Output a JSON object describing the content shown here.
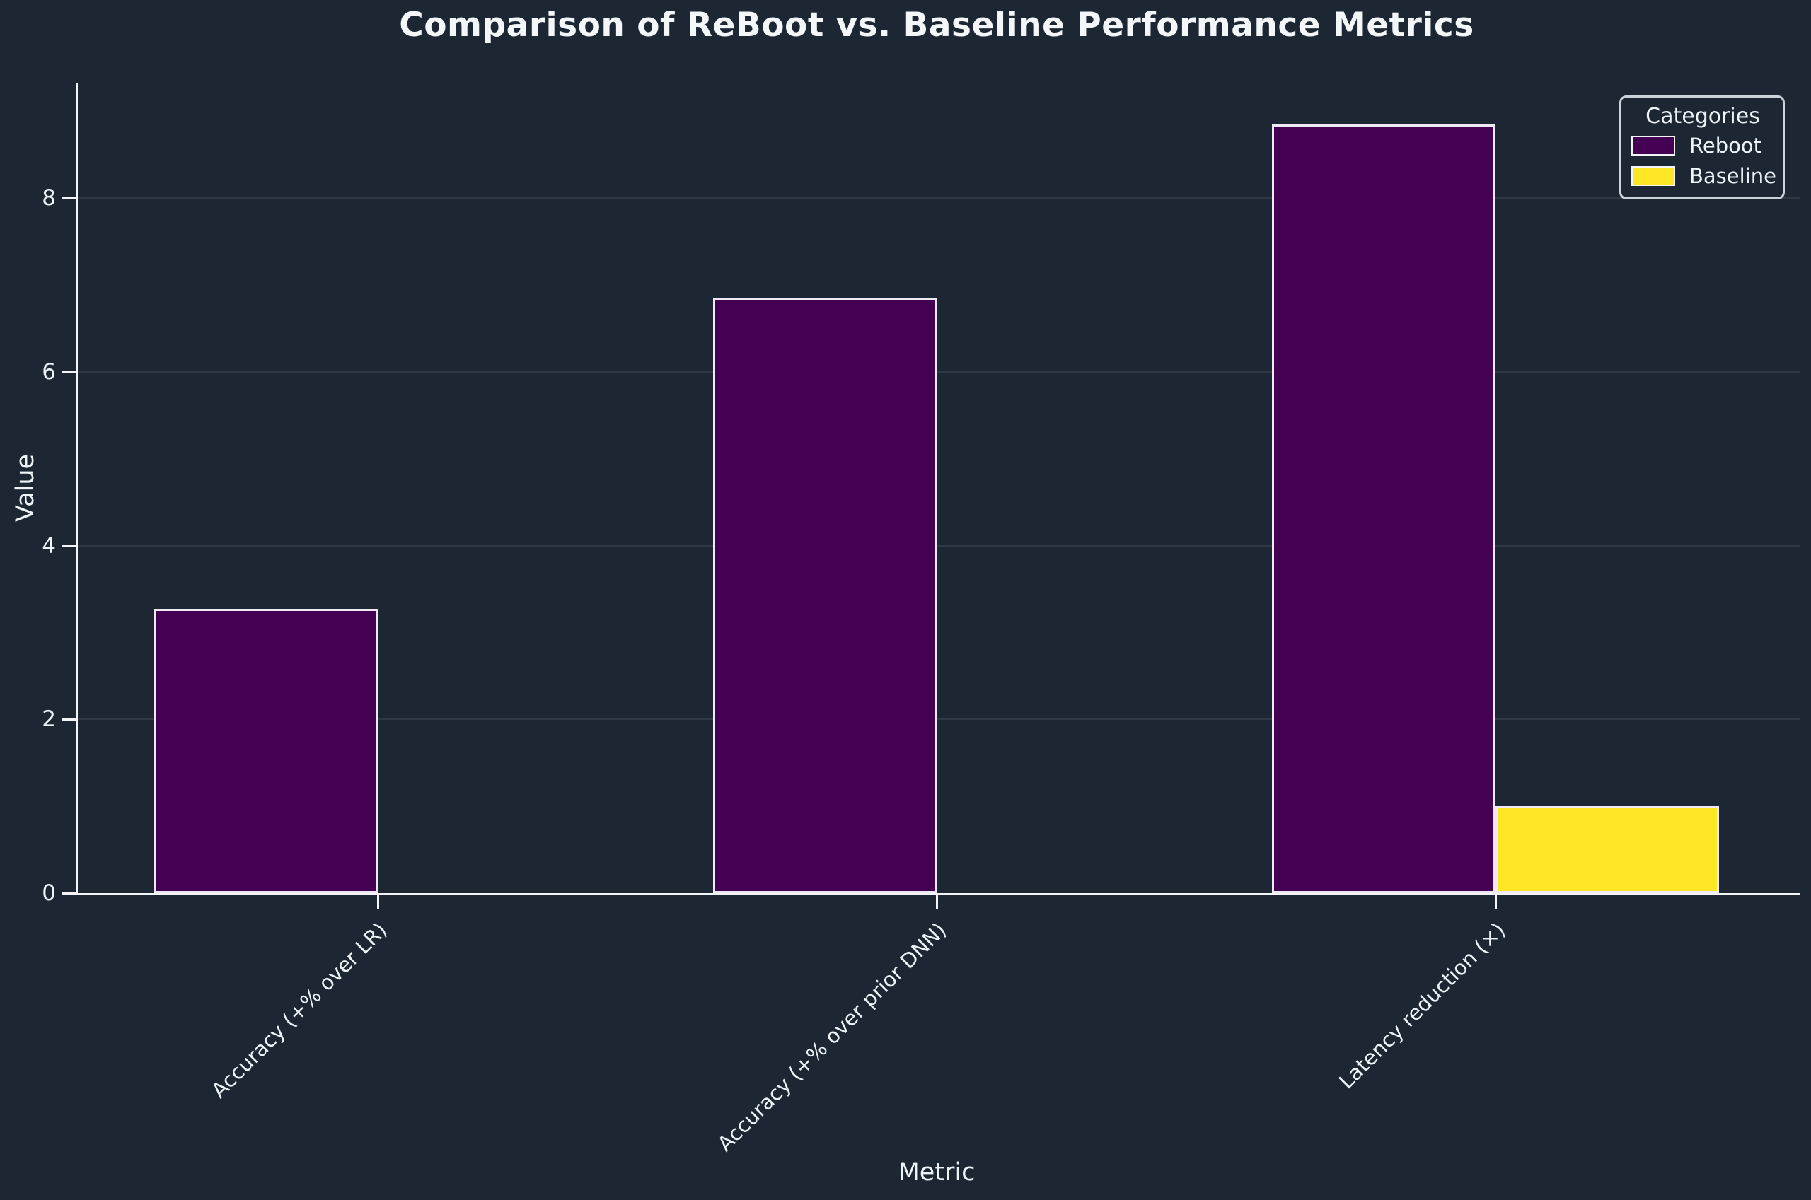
{
  "title": "Comparison of ReBoot vs. Baseline Performance Metrics",
  "style": {
    "background": "#1d2733",
    "text_color": "#eef3f8",
    "spine_color": "#f2f4f8",
    "grid_color": "rgba(255,255,255,0.08)",
    "bar_edge_color": "#efe9f5",
    "legend_border_color": "#ccd2d9"
  },
  "chart_data": {
    "type": "bar",
    "title": "Comparison of ReBoot vs. Baseline Performance Metrics",
    "xlabel": "Metric",
    "ylabel": "Value",
    "categories": [
      "Accuracy (+% over LR)",
      "Accuracy (+% over prior DNN)",
      "Latency reduction (×)"
    ],
    "series": [
      {
        "name": "Reboot",
        "color": "#440154",
        "values": [
          3.27,
          6.85,
          8.85
        ]
      },
      {
        "name": "Baseline",
        "color": "#fde725",
        "values": [
          0,
          0,
          1.0
        ]
      }
    ],
    "ylim": [
      0,
      9.32
    ],
    "yticks": [
      0,
      2,
      4,
      6,
      8
    ],
    "bar_width": 0.4,
    "grid": true,
    "legend_title": "Categories",
    "legend_position": "upper right",
    "x_tick_rotation": 45
  }
}
